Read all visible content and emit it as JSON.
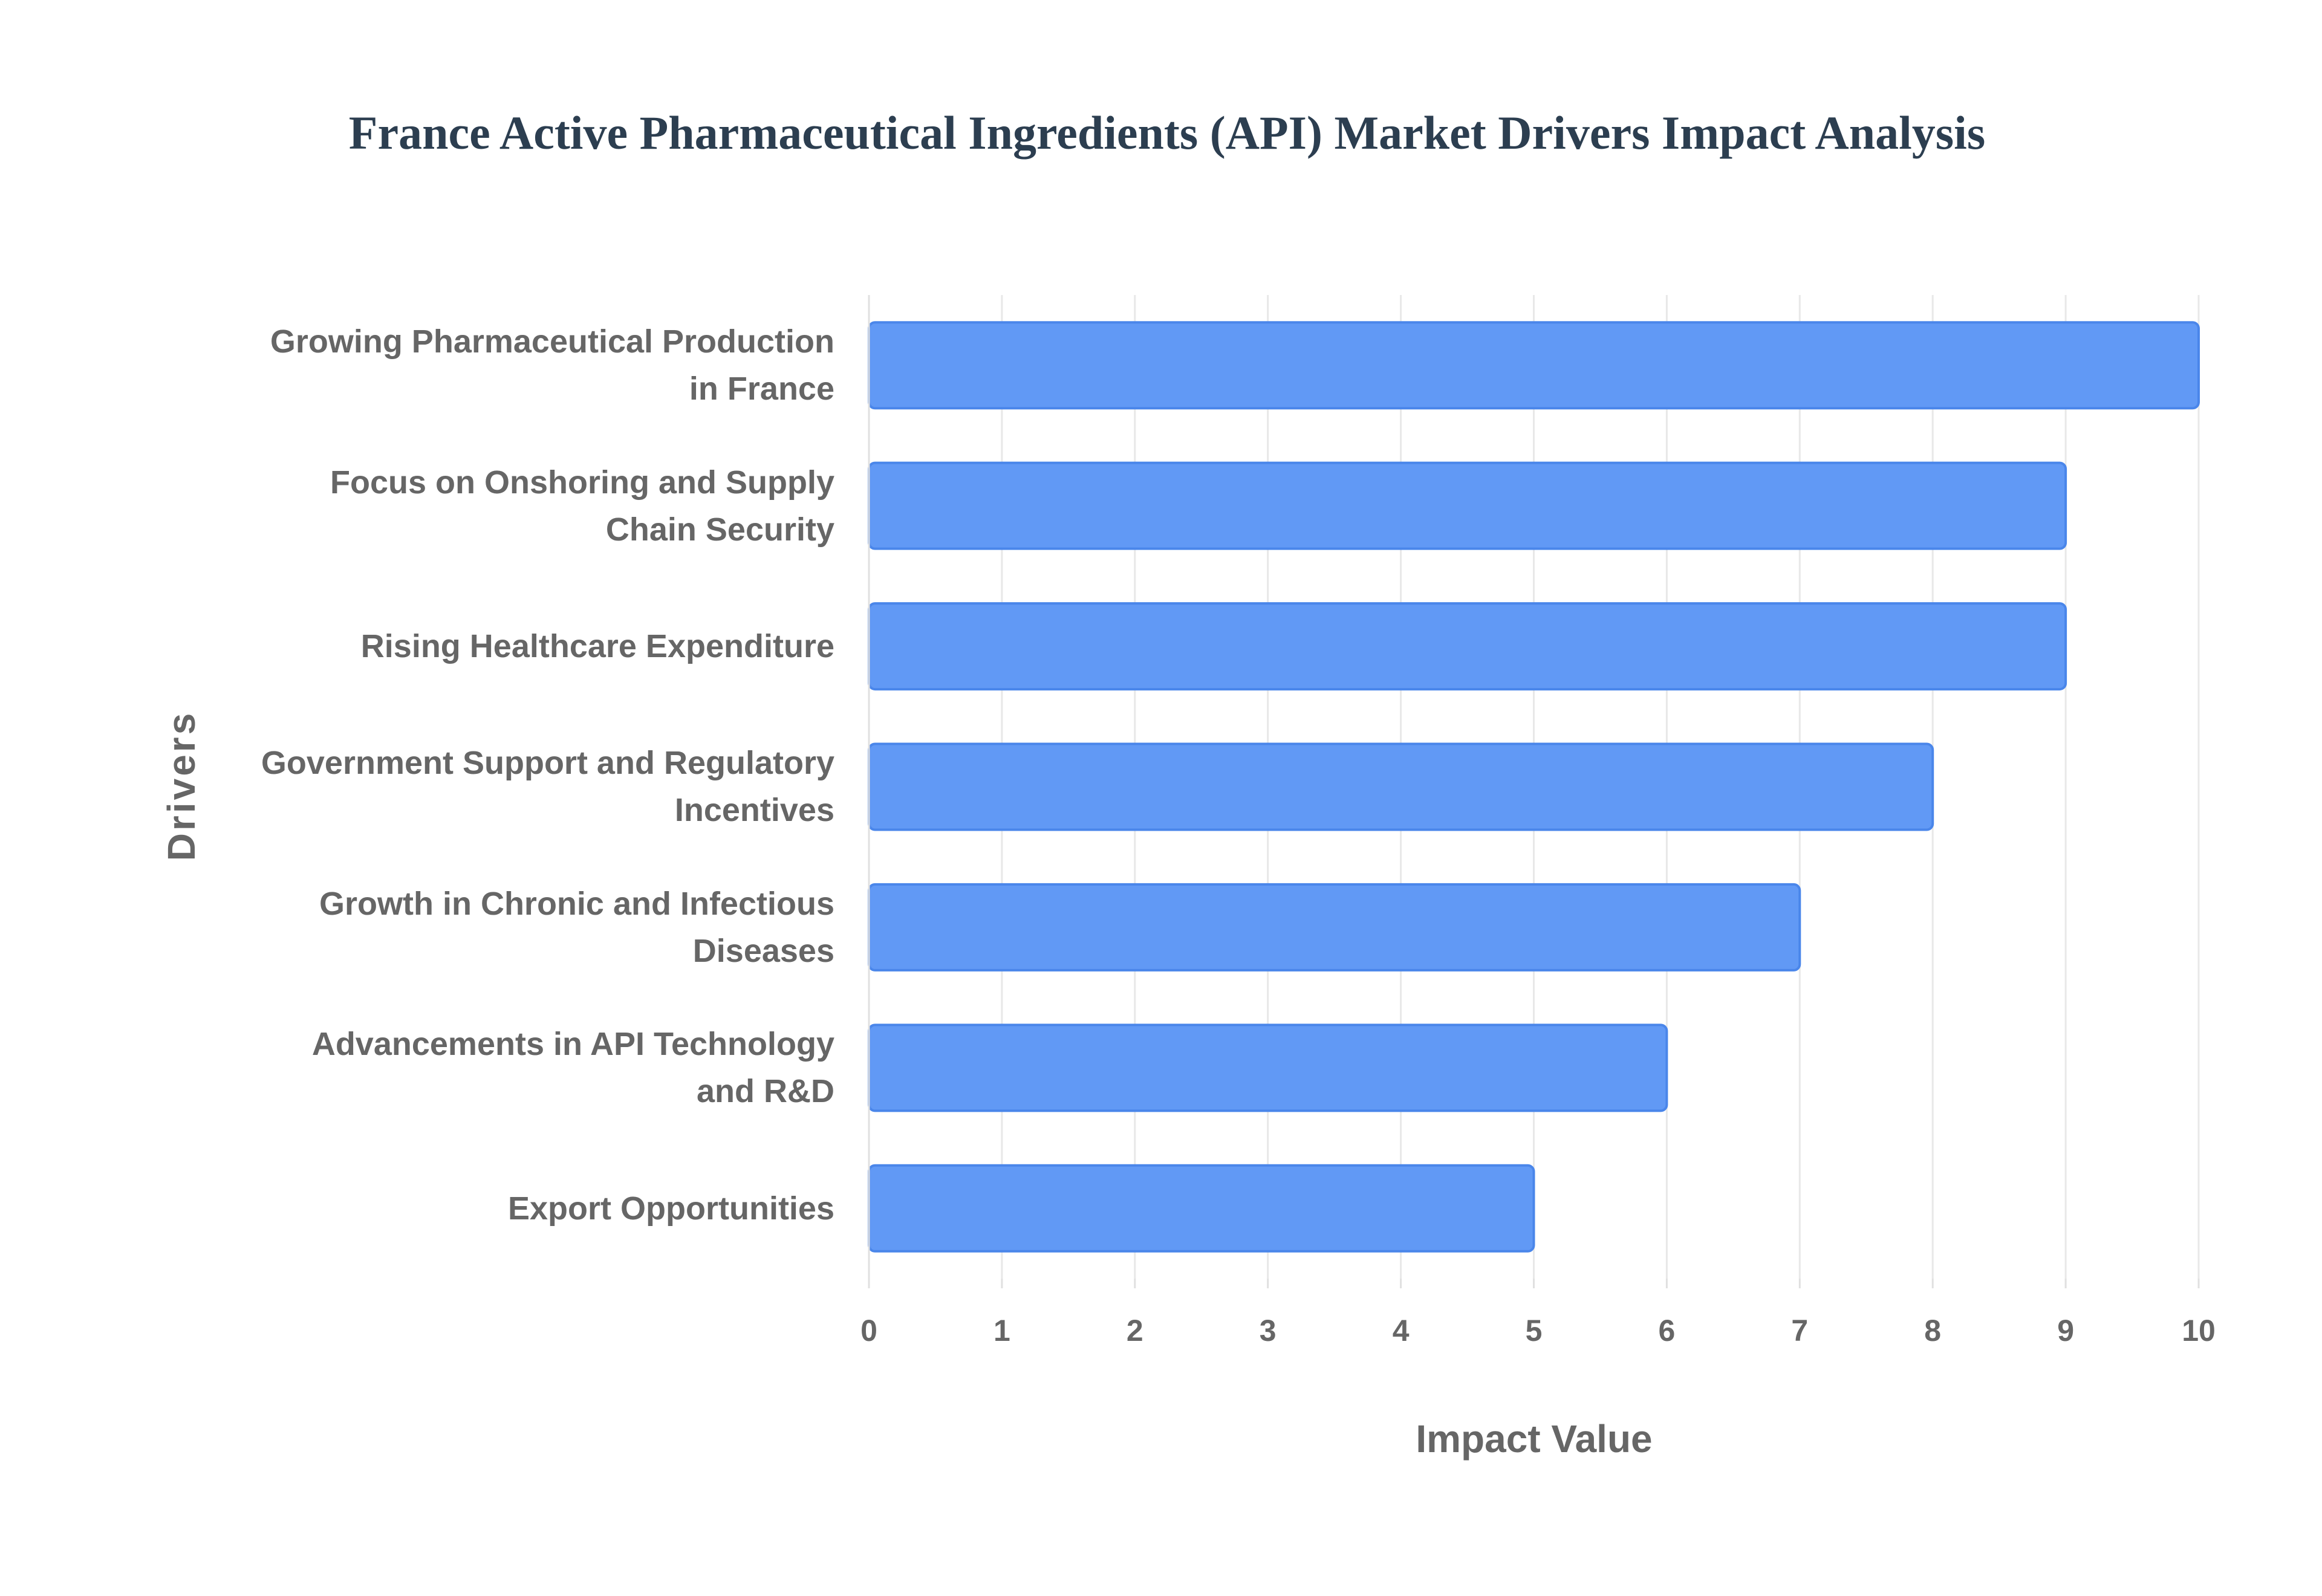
{
  "chart_data": {
    "type": "bar",
    "orientation": "horizontal",
    "title": "France Active Pharmaceutical Ingredients (API) Market Drivers Impact Analysis",
    "x_label": "Impact Value",
    "y_label": "Drivers",
    "categories": [
      "Growing Pharmaceutical Production in France",
      "Focus on Onshoring and Supply Chain Security",
      "Rising Healthcare Expenditure",
      "Government Support and Regulatory Incentives",
      "Growth in Chronic and Infectious Diseases",
      "Advancements in API Technology and R&D",
      "Export Opportunities"
    ],
    "values": [
      10,
      9,
      9,
      8,
      7,
      6,
      5
    ],
    "color": "#6199f5",
    "border_color": "#4a86ea",
    "xlim": [
      0,
      10
    ],
    "xticks": [
      0,
      1,
      2,
      3,
      4,
      5,
      6,
      7,
      8,
      9,
      10
    ],
    "grid": true
  }
}
